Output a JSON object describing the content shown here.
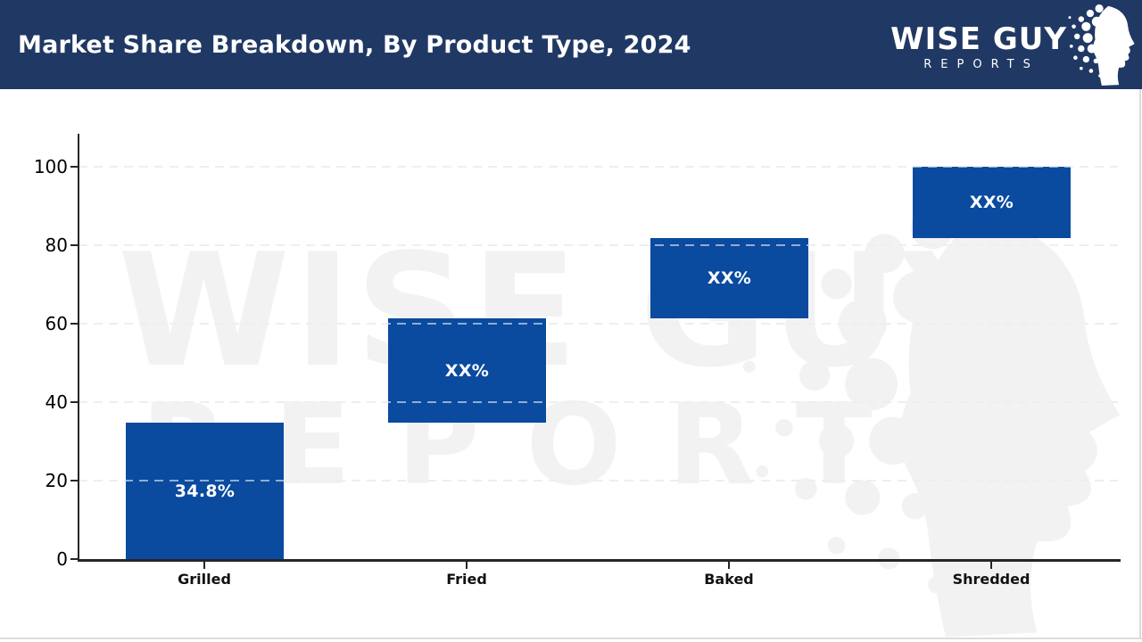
{
  "header": {
    "title": "Market Share Breakdown, By Product Type, 2024",
    "logo": {
      "line1": "WISE GUY",
      "line2": "REPORTS"
    }
  },
  "watermark": {
    "line1": "WISE GUY",
    "line2": "REPORTS"
  },
  "colors": {
    "header_bg": "#203864",
    "bar": "#0a4a9f",
    "axis": "#262626",
    "gridline": "#d9d9d9",
    "bar_label_text": "#ffffff",
    "watermark": "#f2f2f2"
  },
  "chart_data": {
    "type": "bar",
    "subtype": "waterfall",
    "title": "Market Share Breakdown, By Product Type, 2024",
    "xlabel": "",
    "ylabel": "",
    "ylim": [
      0,
      100
    ],
    "yticks": [
      0,
      20,
      40,
      60,
      80,
      100
    ],
    "grid": "horizontal dashed",
    "legend": "none",
    "categories": [
      "Grilled",
      "Fried",
      "Baked",
      "Shredded"
    ],
    "segments": [
      {
        "category": "Grilled",
        "start": 0,
        "end": 34.8,
        "value": 34.8,
        "label": "34.8%"
      },
      {
        "category": "Fried",
        "start": 34.8,
        "end": 61.4,
        "value": 26.6,
        "label": "XX%"
      },
      {
        "category": "Baked",
        "start": 61.4,
        "end": 81.8,
        "value": 20.4,
        "label": "XX%"
      },
      {
        "category": "Shredded",
        "start": 81.8,
        "end": 100,
        "value": 18.2,
        "label": "XX%"
      }
    ]
  }
}
